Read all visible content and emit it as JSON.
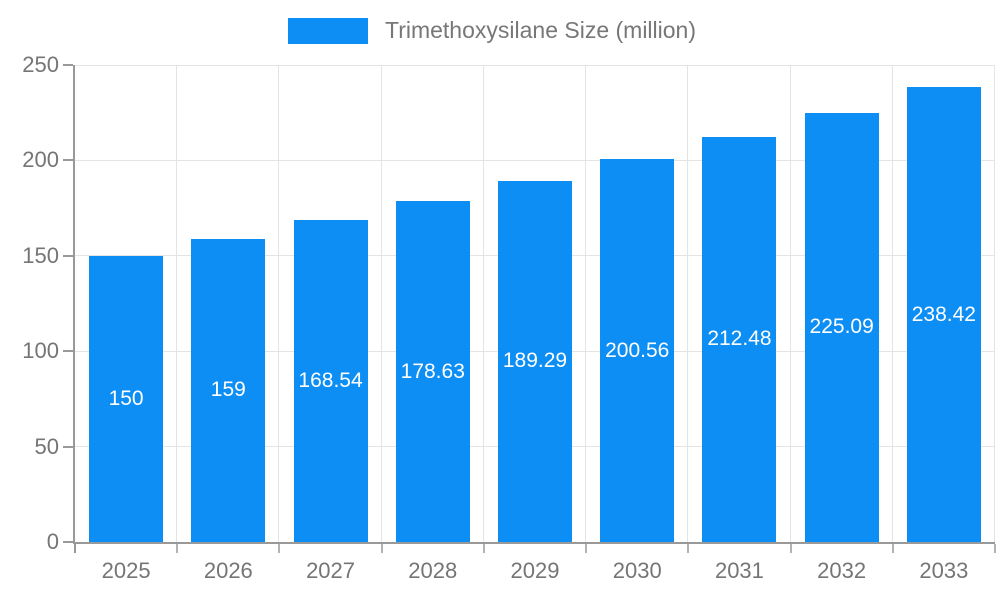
{
  "legend": {
    "label": "Trimethoxysilane Size (million)"
  },
  "chart_data": {
    "type": "bar",
    "title": "",
    "series_name": "Trimethoxysilane Size (million)",
    "categories": [
      "2025",
      "2026",
      "2027",
      "2028",
      "2029",
      "2030",
      "2031",
      "2032",
      "2033"
    ],
    "values": [
      150,
      159,
      168.54,
      178.63,
      189.29,
      200.56,
      212.48,
      225.09,
      238.42
    ],
    "value_labels": [
      "150",
      "159",
      "168.54",
      "178.63",
      "189.29",
      "200.56",
      "212.48",
      "225.09",
      "238.42"
    ],
    "xlabel": "",
    "ylabel": "",
    "ylim": [
      0,
      250
    ],
    "yticks": [
      0,
      50,
      100,
      150,
      200,
      250
    ],
    "grid": true,
    "legend_position": "top-center",
    "colors": {
      "bar": "#0d8ef4",
      "grid": "#e4e4e4",
      "axis": "#999999",
      "tick_mark": "#b3b3b3",
      "tick_text": "#757575",
      "value_text": "#ffffff"
    }
  }
}
